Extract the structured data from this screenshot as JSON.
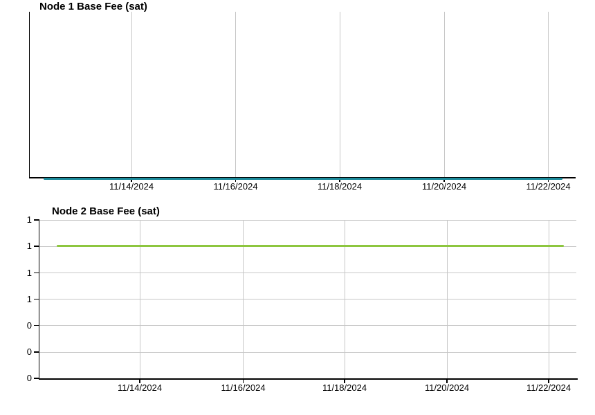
{
  "page": {
    "background": "#ffffff"
  },
  "charts_meta": {
    "axis_color": "#000000",
    "gridline_color": "#c6c6c6",
    "tick_label_color": "#000000",
    "node1_line_color": "#1b8a9a",
    "node2_line_color": "#8dc63f"
  },
  "chart_data": [
    {
      "type": "line",
      "title": "Node 1 Base Fee (sat)",
      "xlabel": "",
      "ylabel": "",
      "grid": "vertical-only",
      "legend": "none",
      "x_tick_labels": [
        "11/14/2024",
        "11/16/2024",
        "11/18/2024",
        "11/20/2024",
        "11/22/2024"
      ],
      "y_tick_labels": [],
      "x_range": [
        "11/12/2024",
        "11/22/2024"
      ],
      "series": [
        {
          "name": "Node 1 Base Fee",
          "color": "#1b8a9a",
          "x": [
            "11/12/2024",
            "11/14/2024",
            "11/16/2024",
            "11/18/2024",
            "11/20/2024",
            "11/22/2024"
          ],
          "values": [
            0,
            0,
            0,
            0,
            0,
            0
          ],
          "constant_value": 0
        }
      ]
    },
    {
      "type": "line",
      "title": "Node 2 Base Fee (sat)",
      "xlabel": "",
      "ylabel": "",
      "grid": "both",
      "legend": "none",
      "x_tick_labels": [
        "11/14/2024",
        "11/16/2024",
        "11/18/2024",
        "11/20/2024",
        "11/22/2024"
      ],
      "y_tick_labels": [
        "1",
        "1",
        "1",
        "1",
        "0",
        "0",
        "0"
      ],
      "ylim": [
        0,
        1.2
      ],
      "y_tick_step": 0.2,
      "x_range": [
        "11/12/2024",
        "11/22/2024"
      ],
      "series": [
        {
          "name": "Node 2 Base Fee",
          "color": "#8dc63f",
          "x": [
            "11/12/2024",
            "11/14/2024",
            "11/16/2024",
            "11/18/2024",
            "11/20/2024",
            "11/22/2024"
          ],
          "values": [
            1,
            1,
            1,
            1,
            1,
            1
          ],
          "constant_value": 1
        }
      ]
    }
  ]
}
